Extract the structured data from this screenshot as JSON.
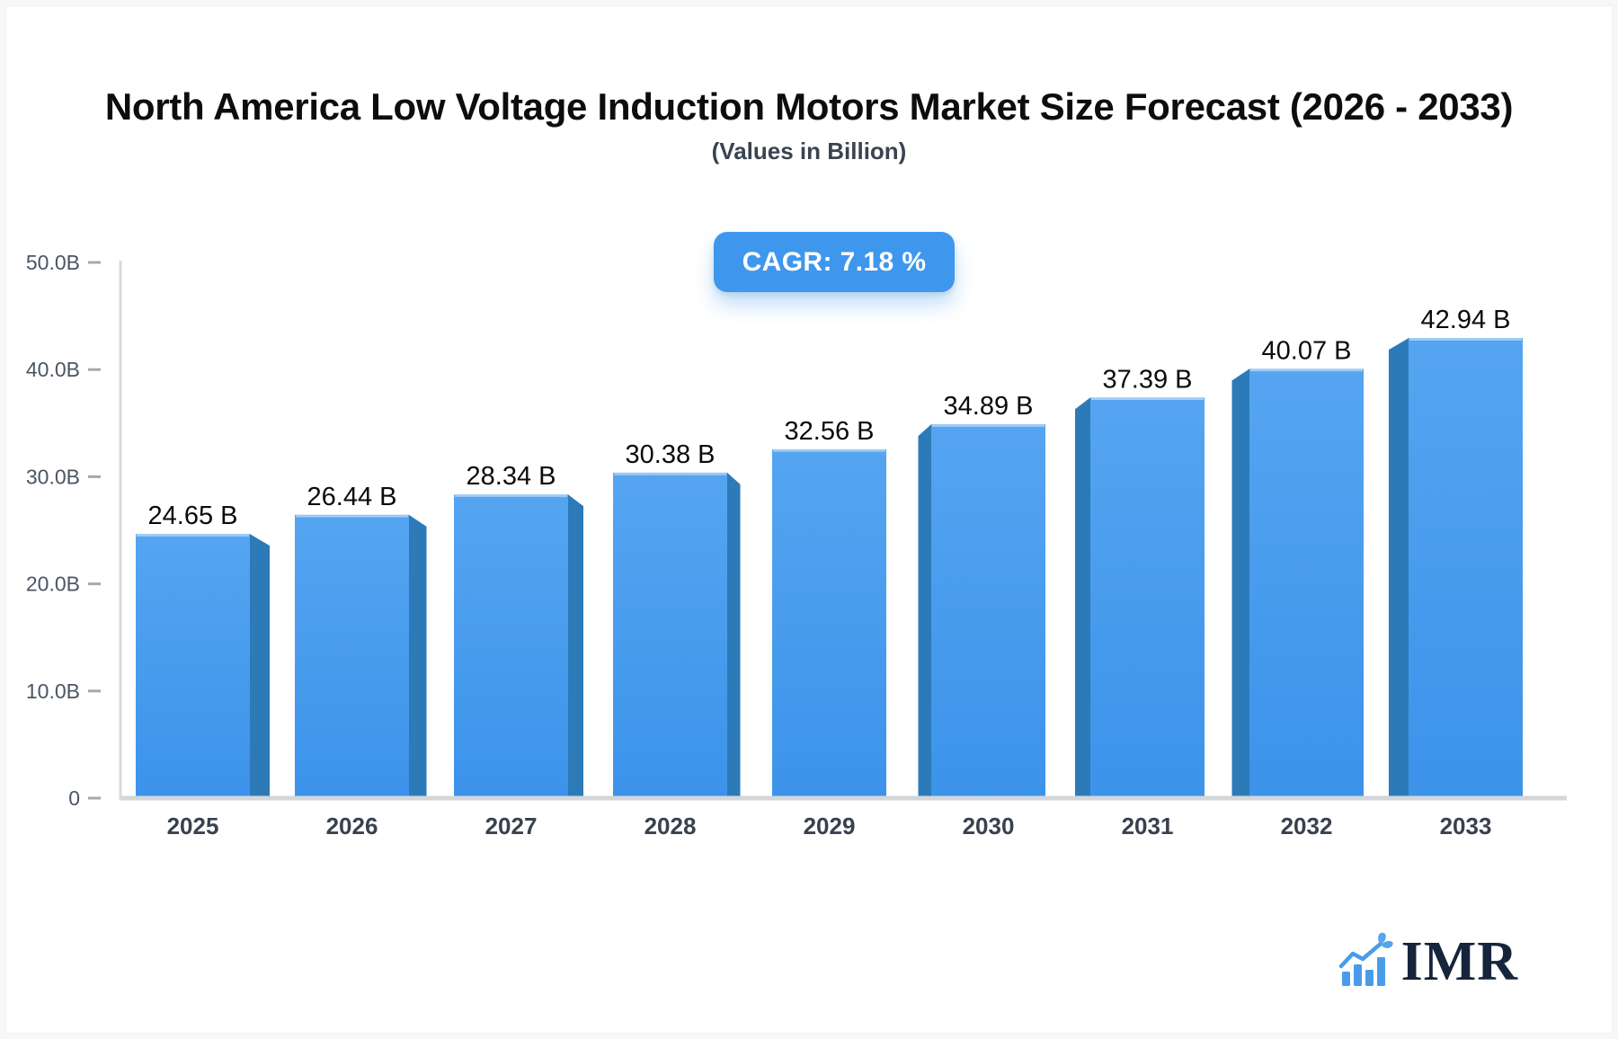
{
  "header": {
    "title": "North America Low Voltage Induction Motors Market Size Forecast (2026 - 2033)",
    "subtitle": "(Values in Billion)"
  },
  "badge": {
    "label": "CAGR: 7.18 %",
    "background_color": "#3e97ed",
    "text_color": "#ffffff"
  },
  "chart_data": {
    "type": "bar",
    "title": "North America Low Voltage Induction Motors Market Size Forecast (2026 - 2033)",
    "subtitle": "(Values in Billion)",
    "categories": [
      "2025",
      "2026",
      "2027",
      "2028",
      "2029",
      "2030",
      "2031",
      "2032",
      "2033"
    ],
    "values": [
      24.65,
      26.44,
      28.34,
      30.38,
      32.56,
      34.89,
      37.39,
      40.07,
      42.94
    ],
    "value_labels": [
      "24.65 B",
      "26.44 B",
      "28.34 B",
      "30.38 B",
      "32.56 B",
      "34.89 B",
      "37.39 B",
      "40.07 B",
      "42.94 B"
    ],
    "xlabel": "",
    "ylabel": "",
    "ylim": [
      0,
      50
    ],
    "yticks": [
      {
        "value": 50,
        "label": "50.0B"
      },
      {
        "value": 40,
        "label": "40.0B"
      },
      {
        "value": 30,
        "label": "30.0B"
      },
      {
        "value": 20,
        "label": "20.0B"
      },
      {
        "value": 10,
        "label": "10.0B"
      },
      {
        "value": 0,
        "label": "0"
      }
    ],
    "grid": false,
    "legend": "none",
    "colors": {
      "bar_top": "#55a5f1",
      "bar_bottom": "#3c93ea",
      "bar_side": "#2d7ab8",
      "axis_line": "#d7d9de",
      "baseline": "#d3d6da",
      "tick_mark": "#a3a9b3",
      "ytick_label": "#4b5563",
      "xtick_label": "#39414f",
      "value_label": "#0b0b0b"
    }
  },
  "logo": {
    "text": "IMR",
    "icon": "bar-chart-leaf-icon",
    "icon_color": "#4a9ceb",
    "leaf_color": "#55a4ef",
    "text_color": "#16243c"
  }
}
